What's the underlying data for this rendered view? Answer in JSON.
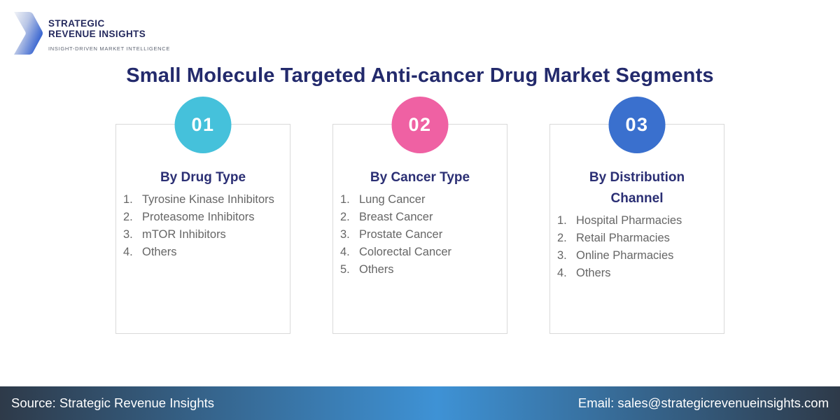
{
  "logo": {
    "line1": "STRATEGIC",
    "line2": "REVENUE INSIGHTS",
    "tagline": "INSIGHT-DRIVEN MARKET INTELLIGENCE",
    "chevron_gradient": {
      "start": "#f1f3f7",
      "end": "#2f5ecf"
    },
    "text_color": "#252a5e"
  },
  "title": {
    "text": "Small Molecule Targeted Anti-cancer Drug Market Segments",
    "color": "#232a6c"
  },
  "segments": [
    {
      "number": "01",
      "circle_color": "#45c1db",
      "heading": "By Drug Type",
      "items": [
        "Tyrosine Kinase Inhibitors",
        "Proteasome Inhibitors",
        "mTOR Inhibitors",
        "Others"
      ]
    },
    {
      "number": "02",
      "circle_color": "#ef61a3",
      "heading": "By Cancer Type",
      "items": [
        "Lung Cancer",
        "Breast Cancer",
        "Prostate Cancer",
        "Colorectal Cancer",
        "Others"
      ]
    },
    {
      "number": "03",
      "circle_color": "#3a70ce",
      "heading": "By Distribution Channel",
      "items": [
        "Hospital Pharmacies",
        "Retail Pharmacies",
        "Online Pharmacies",
        "Others"
      ]
    }
  ],
  "footer": {
    "source": "Source: Strategic Revenue Insights",
    "email": "Email: sales@strategicrevenueinsights.com",
    "gradient": {
      "edge": "#2e3a49",
      "middle": "#3e92d5"
    }
  }
}
